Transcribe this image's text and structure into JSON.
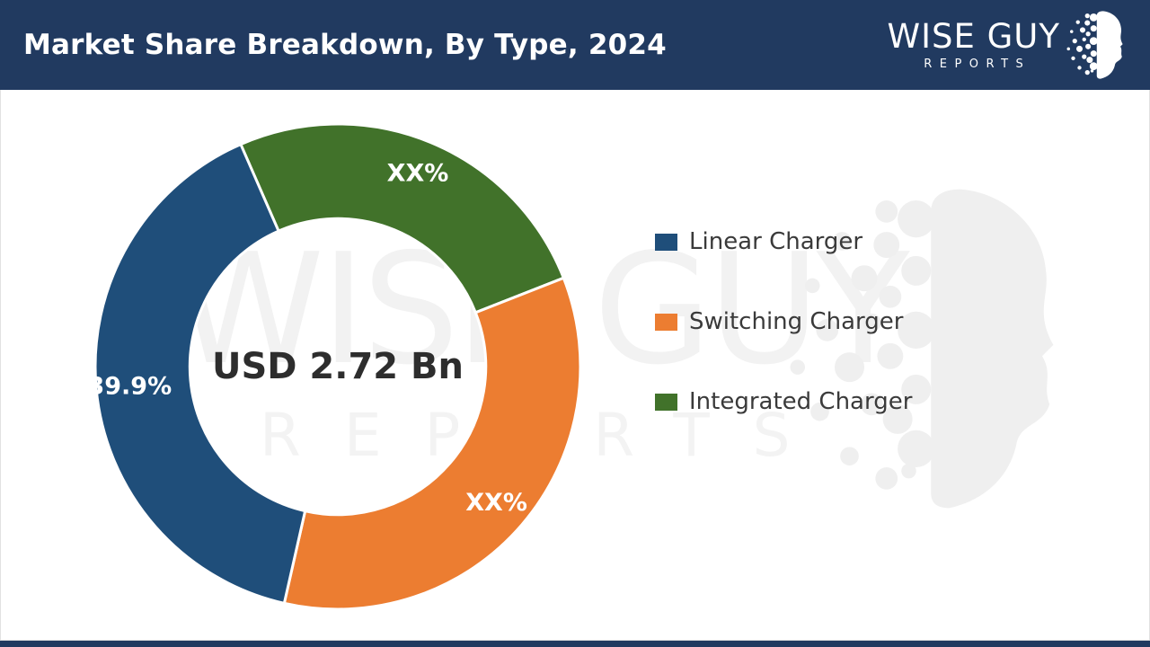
{
  "theme": {
    "band_color": "#213a60",
    "slice_border_color": "#ffffff",
    "legend_text_color": "#3a3a3a",
    "center_text_color": "#2d2d2d"
  },
  "header": {
    "title": "Market Share Breakdown, By Type, 2024",
    "logo": {
      "main": "WISE GUY",
      "sub": "REPORTS"
    }
  },
  "watermark": {
    "primary": "WISE GUY",
    "secondary": "REPORTS"
  },
  "chart_data": {
    "type": "pie",
    "subtype": "donut",
    "title": "Market Share Breakdown, By Type, 2024",
    "center_label": "USD 2.72 Bn",
    "categories": [
      "Linear Charger",
      "Switching Charger",
      "Integrated Charger"
    ],
    "series": [
      {
        "name": "Linear Charger",
        "label": "39.9%",
        "value": 39.9,
        "color": "#1f4e7a"
      },
      {
        "name": "Switching Charger",
        "label": "XX%",
        "value": 34.5,
        "color": "#ec7d31"
      },
      {
        "name": "Integrated Charger",
        "label": "XX%",
        "value": 25.6,
        "color": "#41722a"
      }
    ],
    "start_angle_deg": 113.6,
    "direction": "clockwise",
    "draw_order": [
      2,
      1,
      0
    ],
    "hole_ratio": 0.61,
    "label_radius_ratio": 0.862,
    "legend_position": "right"
  }
}
